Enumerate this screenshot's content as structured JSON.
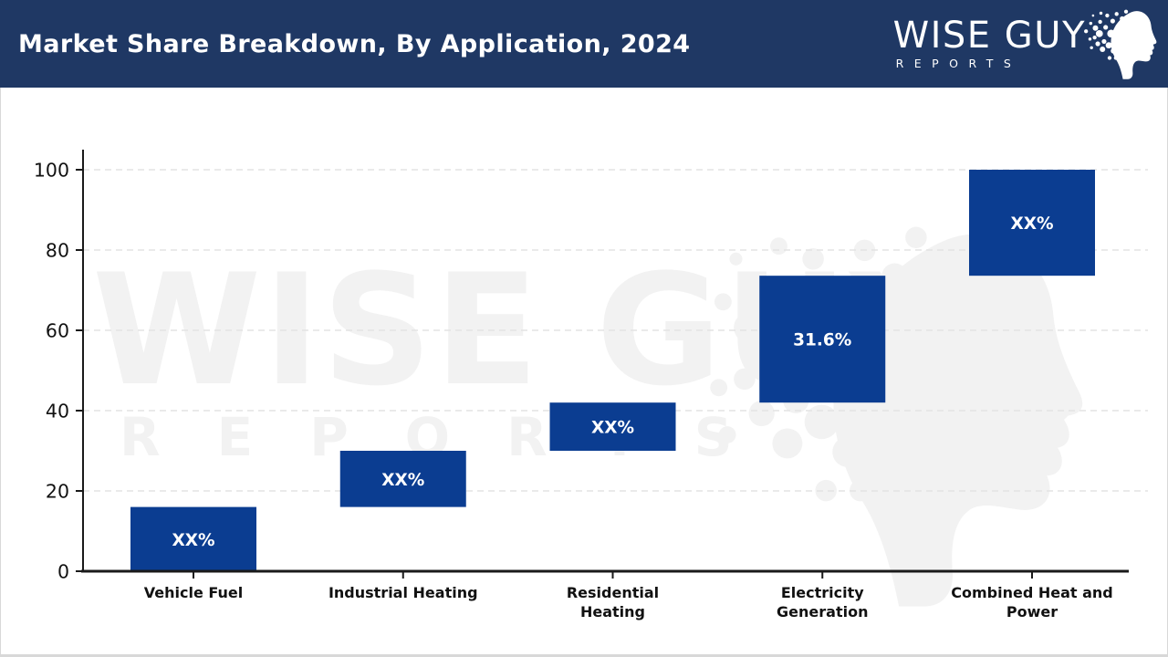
{
  "header": {
    "title": "Market Share Breakdown, By Application, 2024",
    "logo": {
      "line1": "WISE GUY",
      "line2": "REPORTS"
    }
  },
  "watermark": {
    "line1": "WISE GUY",
    "line2": "REPORTS"
  },
  "chart_data": {
    "type": "bar",
    "subtype": "waterfall",
    "title": "Market Share Breakdown, By Application, 2024",
    "categories": [
      "Vehicle Fuel",
      "Industrial Heating",
      "Residential Heating",
      "Electricity Generation",
      "Combined Heat and Power"
    ],
    "category_label_lines": [
      [
        "Vehicle Fuel"
      ],
      [
        "Industrial Heating"
      ],
      [
        "Residential",
        "Heating"
      ],
      [
        "Electricity",
        "Generation"
      ],
      [
        "Combined Heat and",
        "Power"
      ]
    ],
    "segments": [
      {
        "category": "Vehicle Fuel",
        "start": 0,
        "end": 16,
        "value": 16,
        "label": "XX%"
      },
      {
        "category": "Industrial Heating",
        "start": 16,
        "end": 30,
        "value": 14,
        "label": "XX%"
      },
      {
        "category": "Residential Heating",
        "start": 30,
        "end": 42,
        "value": 12,
        "label": "XX%"
      },
      {
        "category": "Electricity Generation",
        "start": 42,
        "end": 73.6,
        "value": 31.6,
        "label": "31.6%"
      },
      {
        "category": "Combined Heat and Power",
        "start": 73.6,
        "end": 100,
        "value": 26.4,
        "label": "XX%"
      }
    ],
    "xlabel": "",
    "ylabel": "",
    "ylim": [
      0,
      100
    ],
    "yticks": [
      0,
      20,
      40,
      60,
      80,
      100
    ],
    "grid": {
      "horizontal": true,
      "style": "dashed"
    },
    "legend": null,
    "colors": {
      "bar": "#0B3D91",
      "bar_label": "#ffffff",
      "axis": "#1a1a1a",
      "tick_label": "#111111",
      "gridline": "#e3e3e3"
    }
  },
  "colors": {
    "header_bg": "#1F3864",
    "page_bg": "#ffffff",
    "watermark": "#f2f2f2",
    "edge_border": "#d8d8d8"
  }
}
